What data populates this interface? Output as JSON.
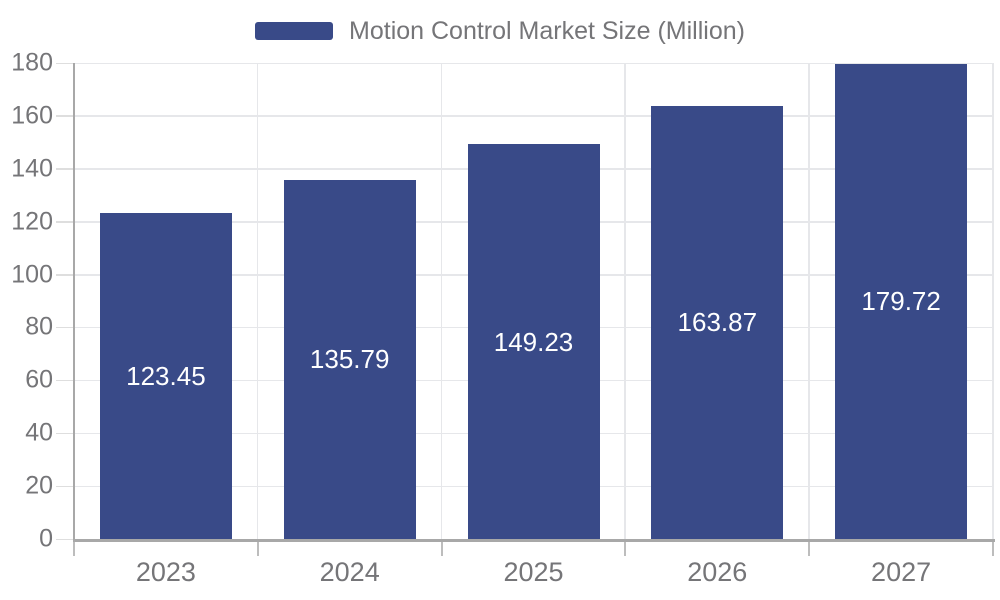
{
  "chart_data": {
    "type": "bar",
    "title": "Motion Control Market Size (Million)",
    "legend_position": "top-center",
    "categories": [
      "2023",
      "2024",
      "2025",
      "2026",
      "2027"
    ],
    "series": [
      {
        "name": "Motion Control Market Size (Million)",
        "values": [
          123.45,
          135.79,
          149.23,
          163.87,
          179.72
        ]
      }
    ],
    "value_labels": [
      "123.45",
      "135.79",
      "149.23",
      "163.87",
      "179.72"
    ],
    "xlabel": "",
    "ylabel": "",
    "ylim": [
      0,
      180
    ],
    "yticks": [
      0,
      20,
      40,
      60,
      80,
      100,
      120,
      140,
      160,
      180
    ],
    "grid": true,
    "colors": {
      "bar": "#394A88",
      "grid_line": "#E6E7EA",
      "axis_line": "#A8A8A8",
      "tick_text": "#757578",
      "y_tick_mark": "#DEDEDE",
      "x_tick_mark": "#BDBDBD",
      "value_label_text": "#FFFFFF",
      "background": "#FFFFFF"
    }
  }
}
